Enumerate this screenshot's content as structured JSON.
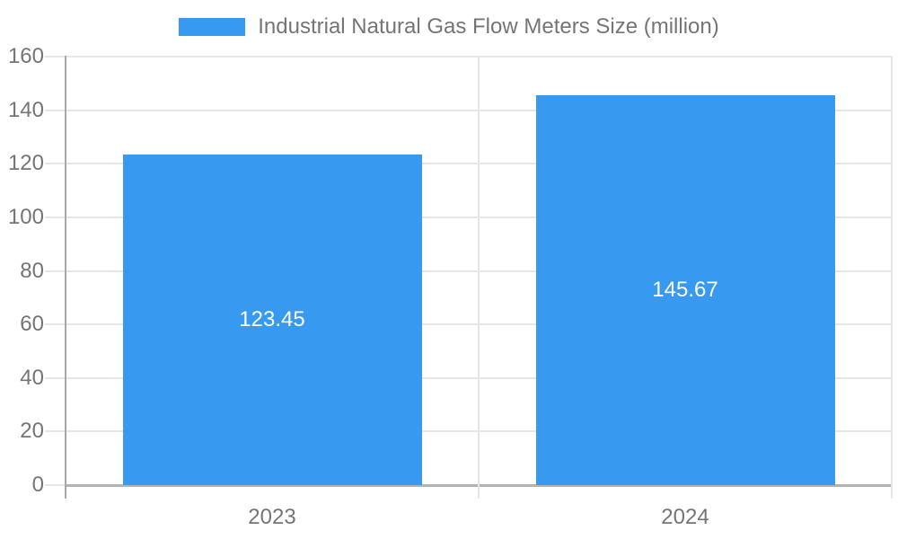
{
  "legend": {
    "label": "Industrial Natural Gas Flow Meters Size (million)"
  },
  "colors": {
    "bar": "#3799f0",
    "grid": "#e6e6e6",
    "axis_line": "#a8a8a8",
    "baseline": "#b3b3b3",
    "text": "#757575",
    "bar_label_text": "#ffffff",
    "background": "#ffffff"
  },
  "chart_data": {
    "type": "bar",
    "title": "Industrial Natural Gas Flow Meters Size (million)",
    "categories": [
      "2023",
      "2024"
    ],
    "series": [
      {
        "name": "Industrial Natural Gas Flow Meters Size (million)",
        "values": [
          123.45,
          145.67
        ]
      }
    ],
    "data_labels": [
      "123.45",
      "145.67"
    ],
    "xlabel": "",
    "ylabel": "",
    "ylim": [
      0,
      160
    ],
    "ytick_interval": 20,
    "ytick_labels": [
      "0",
      "20",
      "40",
      "60",
      "80",
      "100",
      "120",
      "140",
      "160"
    ],
    "grid": true,
    "legend_position": "top"
  }
}
